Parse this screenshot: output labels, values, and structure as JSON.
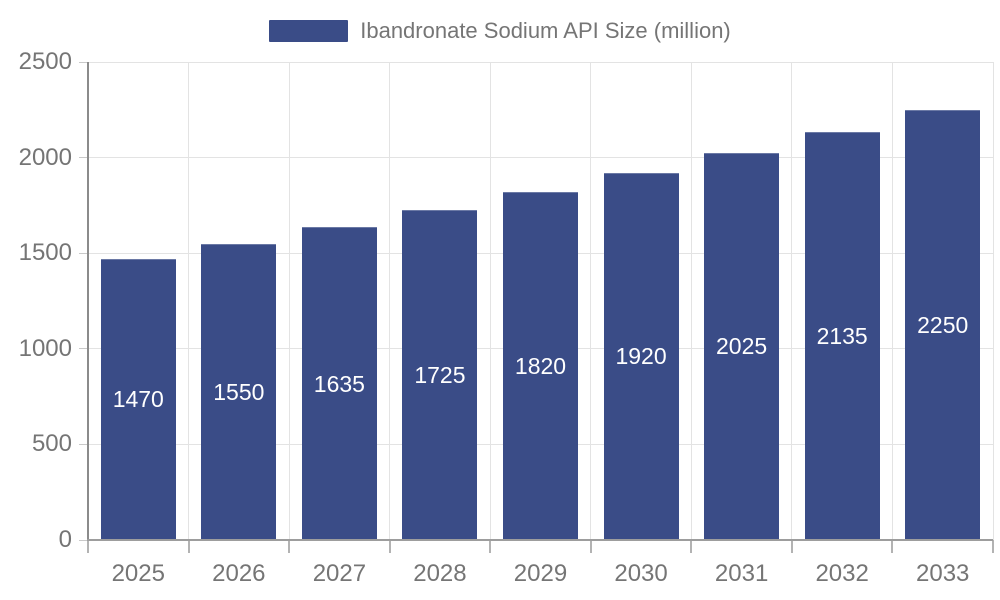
{
  "legend": {
    "label": "Ibandronate Sodium API Size (million)"
  },
  "chart_data": {
    "type": "bar",
    "title": "",
    "xlabel": "",
    "ylabel": "",
    "categories": [
      "2025",
      "2026",
      "2027",
      "2028",
      "2029",
      "2030",
      "2031",
      "2032",
      "2033"
    ],
    "series": [
      {
        "name": "Ibandronate Sodium API Size (million)",
        "values": [
          1470,
          1550,
          1635,
          1725,
          1820,
          1920,
          2025,
          2135,
          2250
        ]
      }
    ],
    "value_labels_shown": true,
    "ylim": [
      0,
      2500
    ],
    "yticks": [
      0,
      500,
      1000,
      1500,
      2000,
      2500
    ],
    "grid": true,
    "legend_position": "top-center",
    "bar_color": "#3a4c87",
    "value_label_color": "#ffffff",
    "axis_label_color": "#757575",
    "gridline_color": "#e3e3e3",
    "background_color": "#ffffff"
  }
}
